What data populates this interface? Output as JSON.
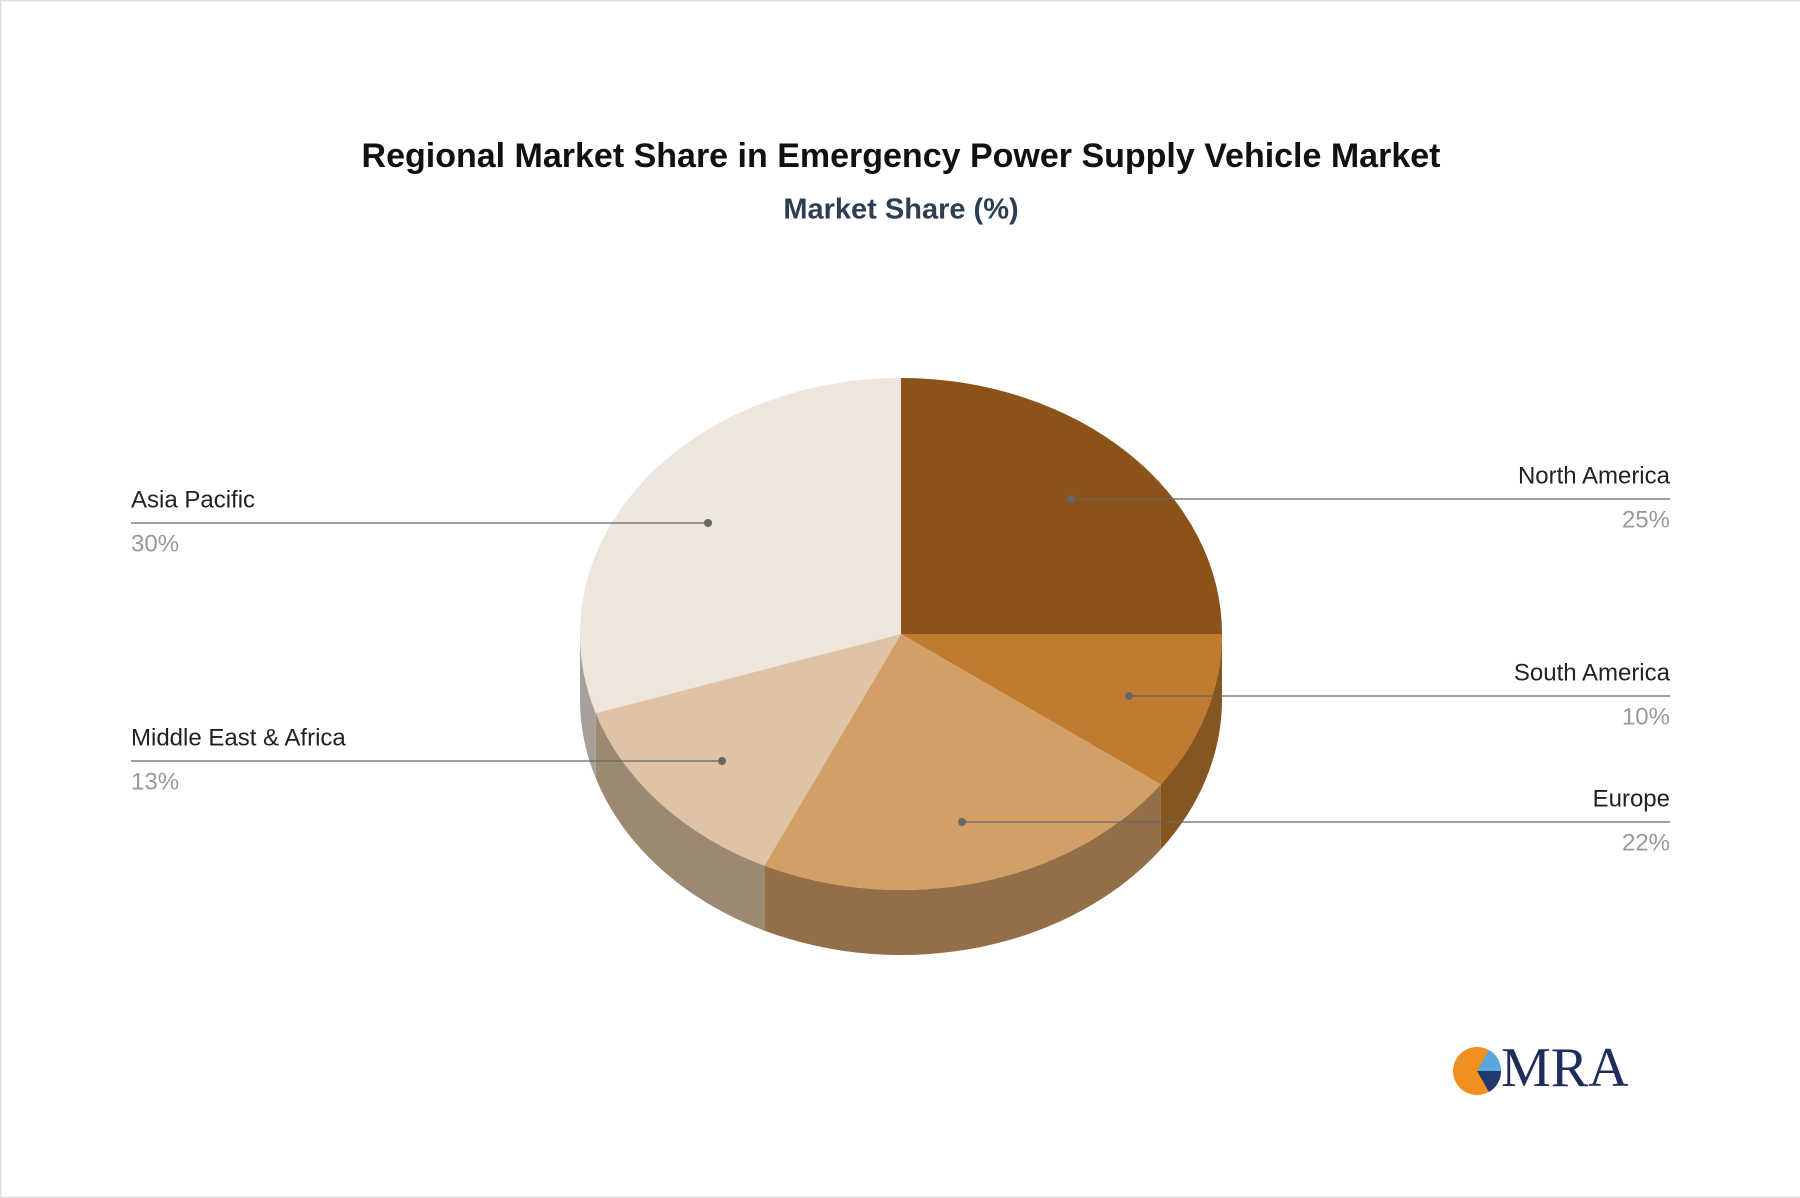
{
  "chart_data": {
    "type": "pie",
    "title": "Regional Market Share in Emergency Power Supply Vehicle Market",
    "subtitle": "Market Share (%)",
    "categories": [
      "North America",
      "South America",
      "Europe",
      "Middle East & Africa",
      "Asia Pacific"
    ],
    "values": [
      25,
      10,
      22,
      13,
      30
    ],
    "value_labels": [
      "25%",
      "10%",
      "22%",
      "13%",
      "30%"
    ],
    "colors": [
      "#8b5319",
      "#c07b30",
      "#d2a066",
      "#dec4a5",
      "#eee5dc"
    ]
  },
  "logo": "MRA"
}
